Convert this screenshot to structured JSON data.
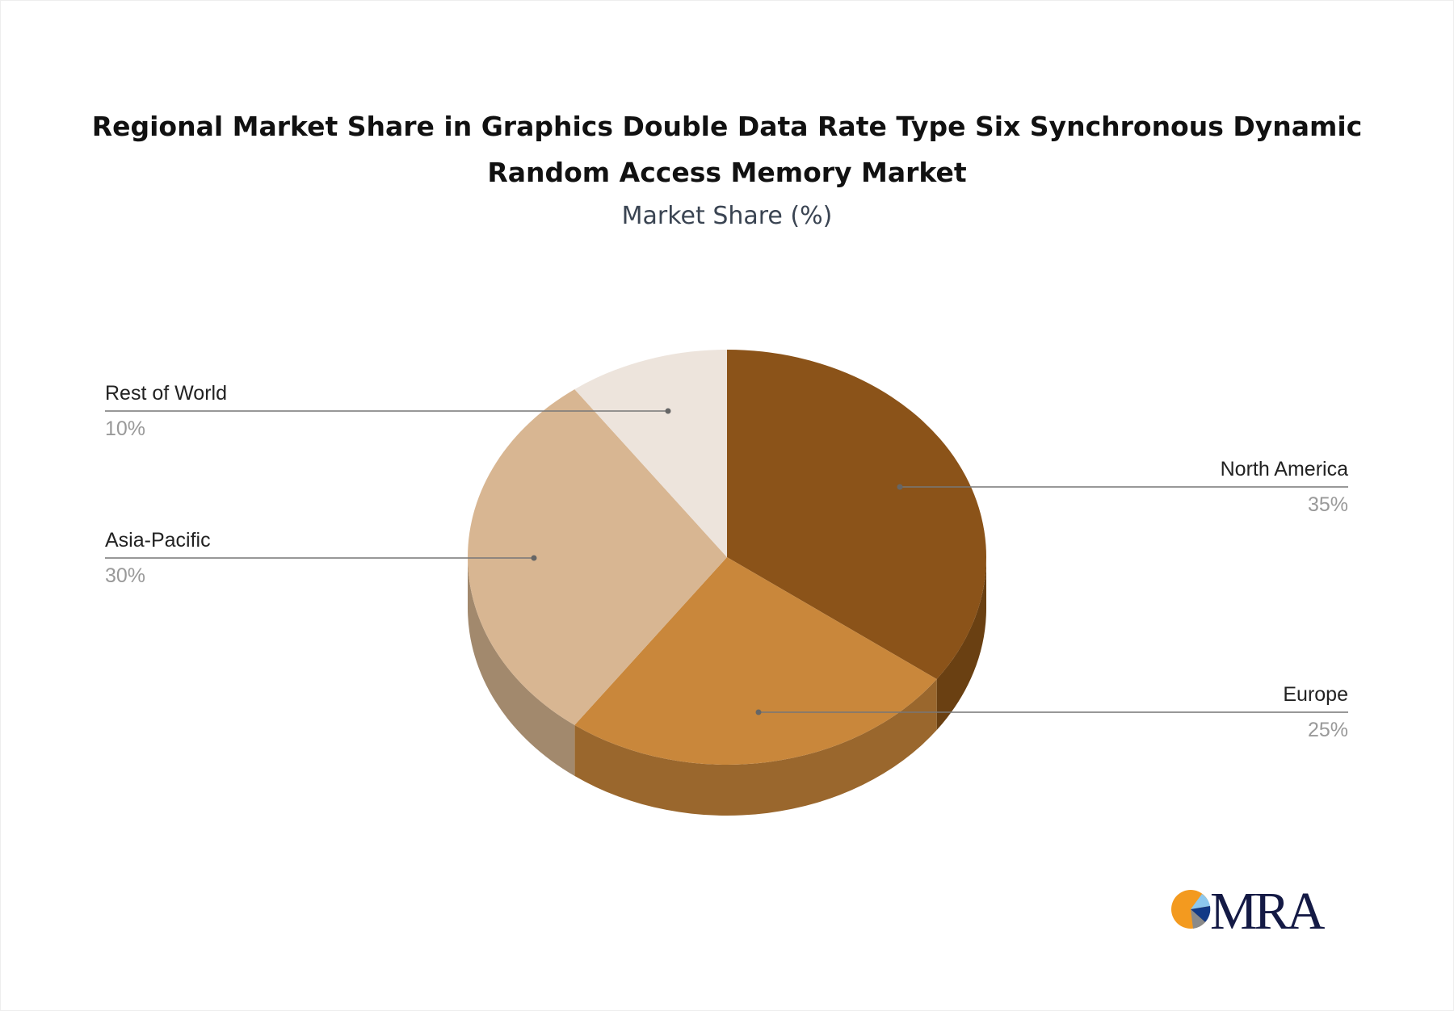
{
  "chart_data": {
    "type": "pie",
    "title_lines": [
      "Regional Market Share in Graphics Double Data Rate Type Six Synchronous Dynamic",
      "Random Access Memory Market"
    ],
    "subtitle": "Market Share (%)",
    "slices": [
      {
        "label": "North America",
        "value": 35,
        "display": "35%",
        "color": "#8B5319",
        "side_color": "#6A4012"
      },
      {
        "label": "Europe",
        "value": 25,
        "display": "25%",
        "color": "#C9873B",
        "side_color": "#9A672D"
      },
      {
        "label": "Asia-Pacific",
        "value": 30,
        "display": "30%",
        "color": "#D8B692",
        "side_color": "#A2896D"
      },
      {
        "label": "Rest of World",
        "value": 10,
        "display": "10%",
        "color": "#EDE4DC",
        "side_color": "#BDB4AC"
      }
    ],
    "style": "3d-pie",
    "legend": "leader-line labels"
  },
  "logo": {
    "text": "MRA",
    "colors": [
      "#F39A1F",
      "#8DC8EE",
      "#123A86",
      "#8A8A8A"
    ]
  }
}
